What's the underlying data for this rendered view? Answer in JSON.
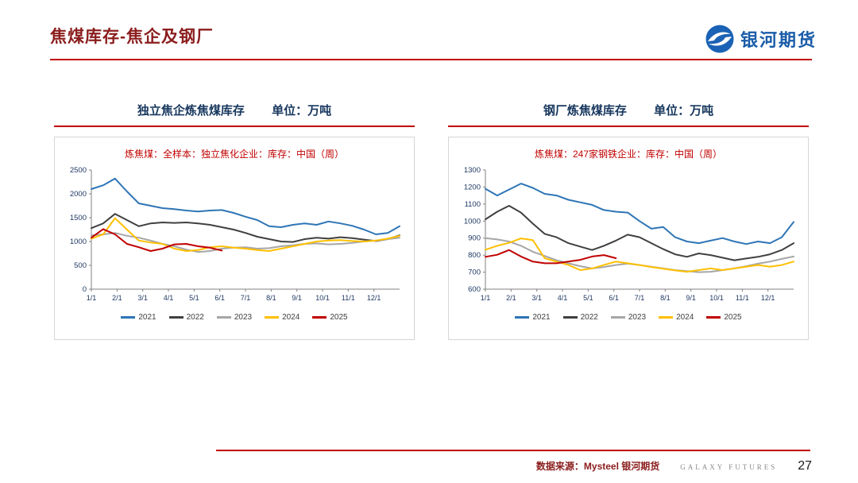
{
  "header": {
    "title": "焦煤库存-焦企及钢厂",
    "logo_text": "银河期货"
  },
  "colors": {
    "accent_red": "#C00000",
    "title_maroon": "#8B1D1D",
    "brand_blue": "#1A5CA8",
    "heading_navy": "#17375E",
    "axis_label": "#1F3864",
    "axis_line": "#808080"
  },
  "panels": [
    {
      "heading": "独立焦企炼焦煤库存",
      "unit": "单位：万吨"
    },
    {
      "heading": "钢厂炼焦煤库存",
      "unit": "单位：万吨"
    }
  ],
  "footer": {
    "source": "数据来源：Mysteel 银河期货",
    "brand": "GALAXY FUTURES",
    "page": "27"
  },
  "chart_data": [
    {
      "type": "line",
      "title": "炼焦煤：全样本：独立焦化企业：库存：中国（周）",
      "xlabel": "",
      "ylabel": "",
      "ylim": [
        0,
        2500
      ],
      "yticks": [
        0,
        500,
        1000,
        1500,
        2000,
        2500
      ],
      "x_range": [
        0,
        52
      ],
      "x_tick_labels": [
        "1/1",
        "2/1",
        "3/1",
        "4/1",
        "5/1",
        "6/1",
        "7/1",
        "8/1",
        "9/1",
        "10/1",
        "11/1",
        "12/1"
      ],
      "grid": false,
      "legend_position": "bottom",
      "series": [
        {
          "name": "2021",
          "color": "#2E75B6",
          "x_end": 52,
          "values": [
            2100,
            2180,
            2320,
            2050,
            1800,
            1750,
            1700,
            1680,
            1650,
            1630,
            1650,
            1660,
            1600,
            1520,
            1450,
            1320,
            1300,
            1350,
            1380,
            1350,
            1420,
            1380,
            1330,
            1250,
            1150,
            1180,
            1320
          ]
        },
        {
          "name": "2022",
          "color": "#404040",
          "x_end": 52,
          "values": [
            1280,
            1380,
            1580,
            1450,
            1320,
            1380,
            1400,
            1390,
            1400,
            1380,
            1350,
            1300,
            1250,
            1180,
            1100,
            1050,
            1000,
            990,
            1050,
            1080,
            1060,
            1090,
            1070,
            1040,
            1010,
            1050,
            1130
          ]
        },
        {
          "name": "2023",
          "color": "#A6A6A6",
          "x_end": 52,
          "values": [
            1130,
            1150,
            1180,
            1120,
            1080,
            1020,
            950,
            900,
            830,
            780,
            800,
            850,
            870,
            880,
            850,
            860,
            900,
            920,
            950,
            960,
            940,
            950,
            970,
            1000,
            1020,
            1050,
            1080
          ]
        },
        {
          "name": "2024",
          "color": "#FFC000",
          "x_end": 52,
          "values": [
            1060,
            1150,
            1490,
            1250,
            1020,
            980,
            950,
            850,
            800,
            820,
            880,
            900,
            870,
            850,
            820,
            800,
            850,
            900,
            950,
            1000,
            1020,
            1030,
            1010,
            1000,
            1020,
            1060,
            1120
          ]
        },
        {
          "name": "2025",
          "color": "#C00000",
          "x_end": 22,
          "values": [
            1080,
            1260,
            1150,
            950,
            880,
            800,
            850,
            940,
            950,
            900,
            870,
            810
          ]
        }
      ]
    },
    {
      "type": "line",
      "title": "炼焦煤：247家钢铁企业：库存：中国（周）",
      "xlabel": "",
      "ylabel": "",
      "ylim": [
        600,
        1300
      ],
      "yticks": [
        600,
        700,
        800,
        900,
        1000,
        1100,
        1200,
        1300
      ],
      "x_range": [
        0,
        52
      ],
      "x_tick_labels": [
        "1/1",
        "2/1",
        "3/1",
        "4/1",
        "5/1",
        "6/1",
        "7/1",
        "8/1",
        "9/1",
        "10/1",
        "11/1",
        "12/1"
      ],
      "grid": false,
      "legend_position": "bottom",
      "series": [
        {
          "name": "2021",
          "color": "#2E75B6",
          "x_end": 52,
          "values": [
            1190,
            1150,
            1185,
            1220,
            1195,
            1160,
            1150,
            1125,
            1110,
            1095,
            1065,
            1055,
            1050,
            1000,
            955,
            965,
            905,
            880,
            870,
            885,
            900,
            880,
            865,
            880,
            870,
            905,
            995
          ]
        },
        {
          "name": "2022",
          "color": "#404040",
          "x_end": 52,
          "values": [
            1010,
            1055,
            1090,
            1050,
            985,
            925,
            905,
            870,
            850,
            830,
            855,
            885,
            920,
            905,
            870,
            835,
            805,
            790,
            810,
            800,
            785,
            770,
            780,
            790,
            805,
            830,
            870
          ]
        },
        {
          "name": "2023",
          "color": "#A6A6A6",
          "x_end": 52,
          "values": [
            900,
            892,
            880,
            855,
            820,
            795,
            770,
            752,
            735,
            722,
            730,
            742,
            750,
            742,
            732,
            722,
            712,
            706,
            700,
            702,
            712,
            722,
            735,
            750,
            762,
            778,
            792
          ]
        },
        {
          "name": "2024",
          "color": "#FFC000",
          "x_end": 52,
          "values": [
            832,
            855,
            872,
            898,
            888,
            782,
            762,
            742,
            712,
            722,
            742,
            762,
            752,
            742,
            730,
            720,
            710,
            702,
            712,
            722,
            712,
            722,
            732,
            742,
            732,
            742,
            762
          ]
        },
        {
          "name": "2025",
          "color": "#C00000",
          "x_end": 22,
          "values": [
            790,
            802,
            830,
            792,
            762,
            752,
            752,
            762,
            772,
            792,
            800,
            782
          ]
        }
      ]
    }
  ]
}
